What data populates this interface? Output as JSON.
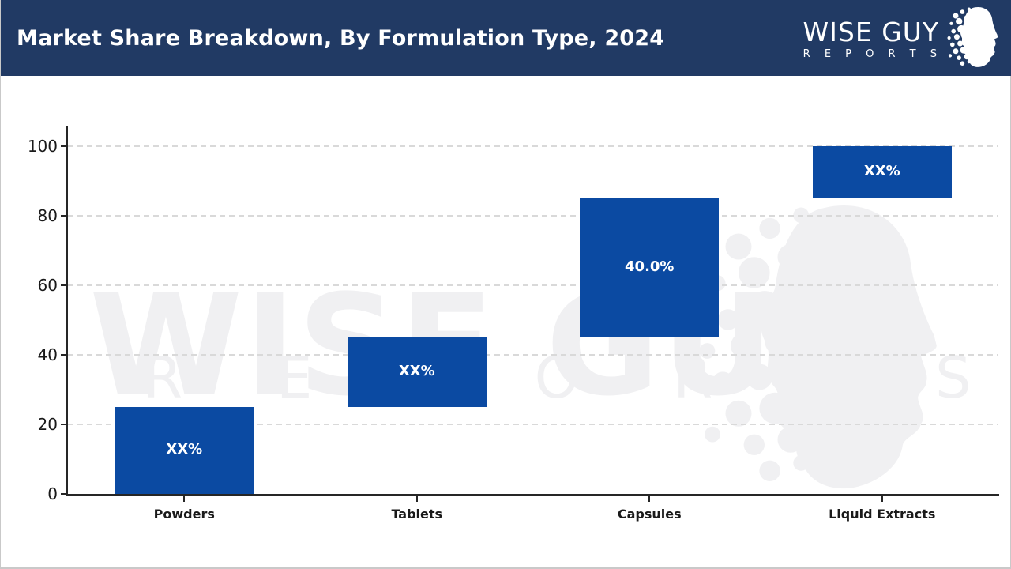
{
  "header": {
    "title": "Market Share Breakdown, By Formulation Type, 2024",
    "brand": {
      "name": "WISE GUY",
      "sub": "R E P O R T S"
    },
    "bg_color": "#213a64"
  },
  "watermark": {
    "line1": "WISE GUY",
    "line2": "R E P O R T S"
  },
  "chart_data": {
    "type": "bar",
    "subtype": "floating-waterfall",
    "title": "Market Share Breakdown, By Formulation Type, 2024",
    "categories": [
      "Powders",
      "Tablets",
      "Capsules",
      "Liquid Extracts"
    ],
    "segments": [
      {
        "category": "Powders",
        "start": 0,
        "end": 25,
        "value": 25,
        "label": "XX%"
      },
      {
        "category": "Tablets",
        "start": 25,
        "end": 45,
        "value": 20,
        "label": "XX%"
      },
      {
        "category": "Capsules",
        "start": 45,
        "end": 85,
        "value": 40,
        "label": "40.0%"
      },
      {
        "category": "Liquid Extracts",
        "start": 85,
        "end": 100,
        "value": 15,
        "label": "XX%"
      }
    ],
    "ylim": [
      0,
      100
    ],
    "yticks": [
      0,
      20,
      40,
      60,
      80,
      100
    ],
    "xlabel": "",
    "ylabel": "",
    "grid": "dashed-horizontal",
    "legend": "none",
    "bar_color": "#0b4aa2",
    "bar_label_color": "#ffffff",
    "axis_color": "#262626",
    "gridline_color": "#d9d9d9",
    "watermark_color": "#f0f0f2"
  }
}
